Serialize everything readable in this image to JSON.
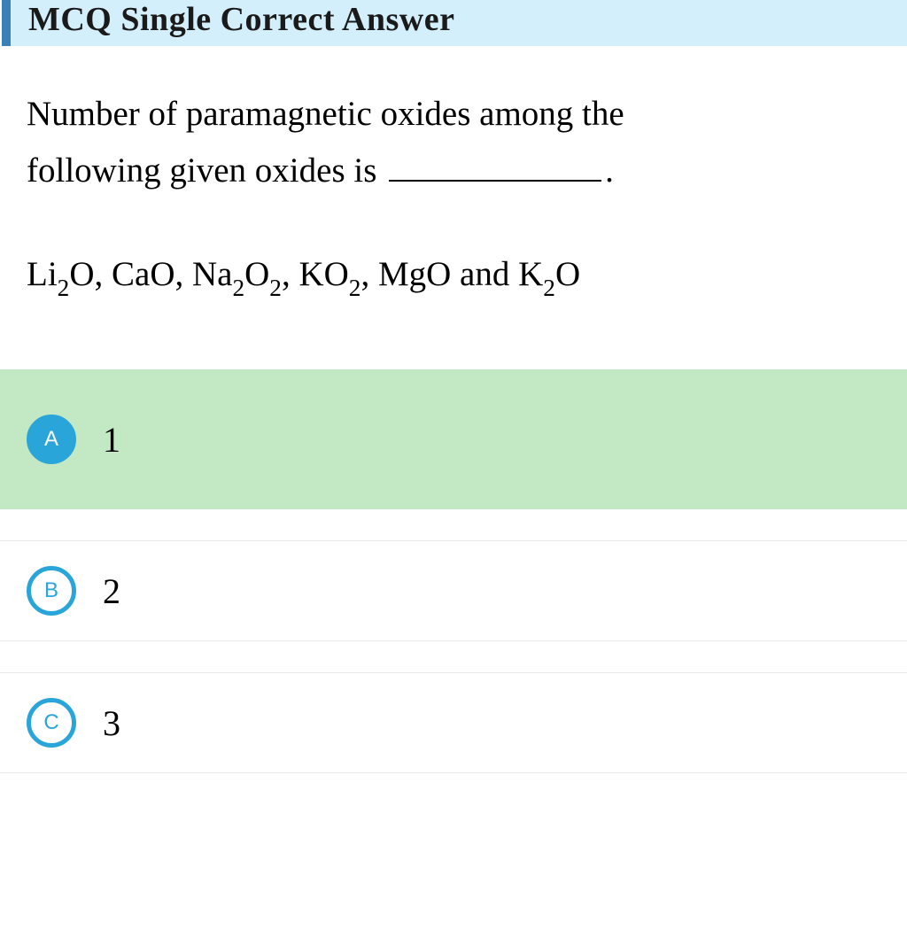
{
  "header": {
    "title": "MCQ Single Correct Answer"
  },
  "question": {
    "line1": "Number of paramagnetic oxides among the",
    "line2_prefix": "following given oxides is ",
    "line2_suffix": "."
  },
  "formula": {
    "parts": [
      {
        "text": "Li",
        "sub": "2"
      },
      {
        "text": "O, CaO, Na",
        "sub": "2"
      },
      {
        "text": "O",
        "sub": "2"
      },
      {
        "text": ", KO",
        "sub": "2"
      },
      {
        "text": ", MgO and K",
        "sub": "2"
      },
      {
        "text": "O",
        "sub": ""
      }
    ]
  },
  "options": [
    {
      "letter": "A",
      "value": "1",
      "selected": true
    },
    {
      "letter": "B",
      "value": "2",
      "selected": false
    },
    {
      "letter": "C",
      "value": "3",
      "selected": false
    }
  ],
  "colors": {
    "header_bg": "#d4effc",
    "header_border": "#3a7fb8",
    "selected_bg": "#c3e8c4",
    "circle_border": "#2aa5d9",
    "text": "#000000",
    "option_border": "#e8e8e8"
  }
}
